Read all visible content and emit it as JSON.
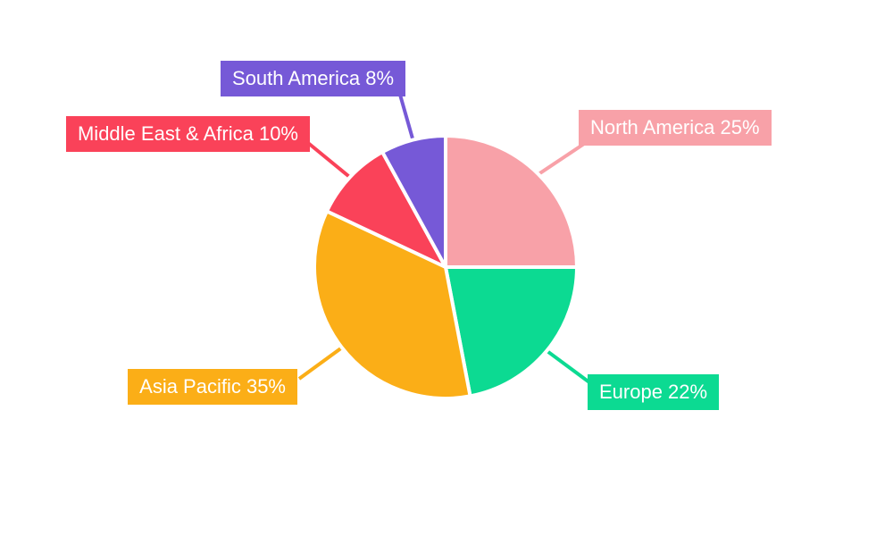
{
  "chart_data": {
    "type": "pie",
    "title": "",
    "unit": "%",
    "direction": "clockwise",
    "start_angle_deg": 0,
    "legend": "none",
    "background": "#ffffff",
    "label_text_color": "#ffffff",
    "slices": [
      {
        "label": "North America",
        "value": 25,
        "display": "North America 25%",
        "color": "#F8A1A8"
      },
      {
        "label": "Europe",
        "value": 22,
        "display": "Europe 22%",
        "color": "#0CDA92"
      },
      {
        "label": "Asia Pacific",
        "value": 35,
        "display": "Asia Pacific 35%",
        "color": "#FBAE17"
      },
      {
        "label": "Middle East & Africa",
        "value": 10,
        "display": "Middle East & Africa 10%",
        "color": "#FA4259"
      },
      {
        "label": "South America",
        "value": 8,
        "display": "South America 8%",
        "color": "#7659D7"
      }
    ]
  }
}
